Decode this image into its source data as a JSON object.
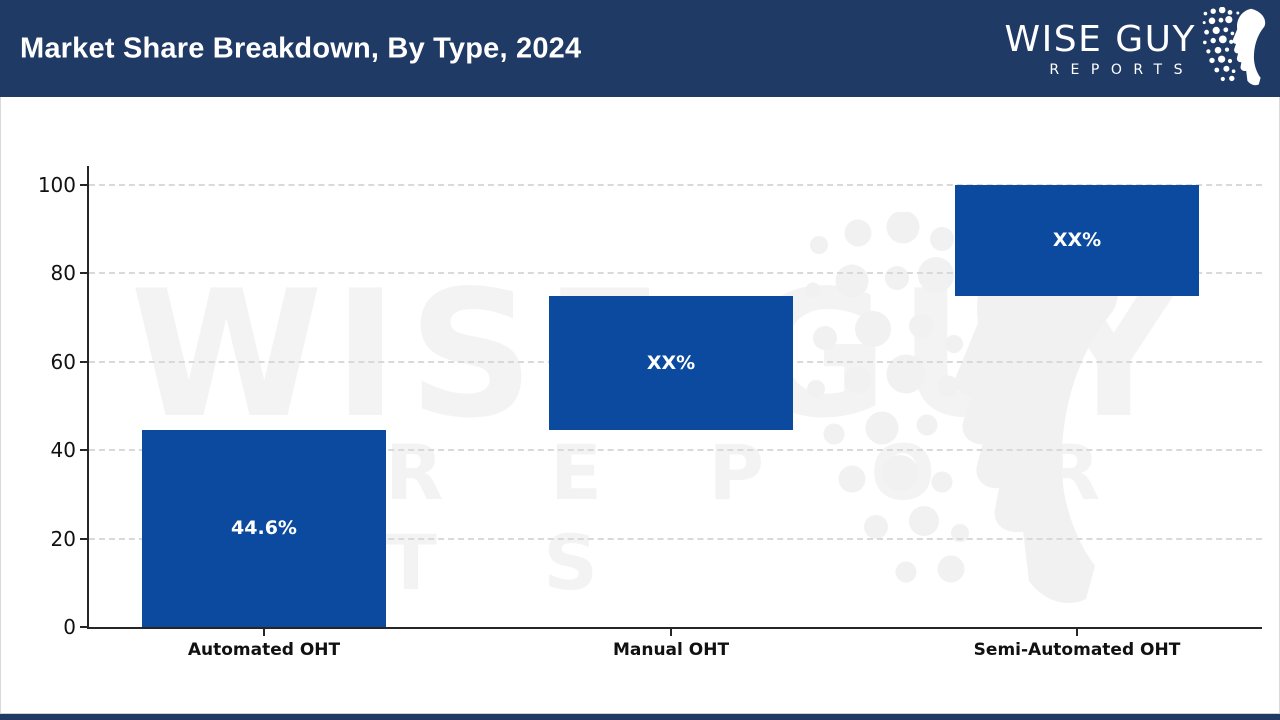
{
  "header": {
    "title": "Market Share Breakdown, By Type, 2024",
    "logo": {
      "brand_top": "WISE GUY",
      "brand_bottom": "REPORTS"
    }
  },
  "watermark": {
    "text_top": "WISE GUY",
    "text_bottom": "R E P O R T S"
  },
  "chart_data": {
    "type": "bar",
    "variant": "stacked-percentage-waterfall",
    "title": "Market Share Breakdown, By Type, 2024",
    "categories": [
      "Automated OHT",
      "Manual OHT",
      "Semi-Automated OHT"
    ],
    "series": [
      {
        "name": "Automated OHT",
        "start": 0,
        "end": 44.6,
        "value_label": "44.6%"
      },
      {
        "name": "Manual OHT",
        "start": 44.6,
        "end": 75,
        "value_label": "XX%"
      },
      {
        "name": "Semi-Automated OHT",
        "start": 75,
        "end": 100,
        "value_label": "XX%"
      }
    ],
    "ylim": [
      0,
      100
    ],
    "yticks": [
      0,
      20,
      40,
      60,
      80,
      100
    ],
    "grid": "horizontal-dashed",
    "legend": "none",
    "colors": {
      "bar": "#0b4a9e",
      "bar_label": "#ffffff",
      "header_bg": "#203a66",
      "footer_bg": "#203a66",
      "grid": "#d9d9d9",
      "axis": "#262626",
      "watermark": "#f3f3f3"
    }
  }
}
